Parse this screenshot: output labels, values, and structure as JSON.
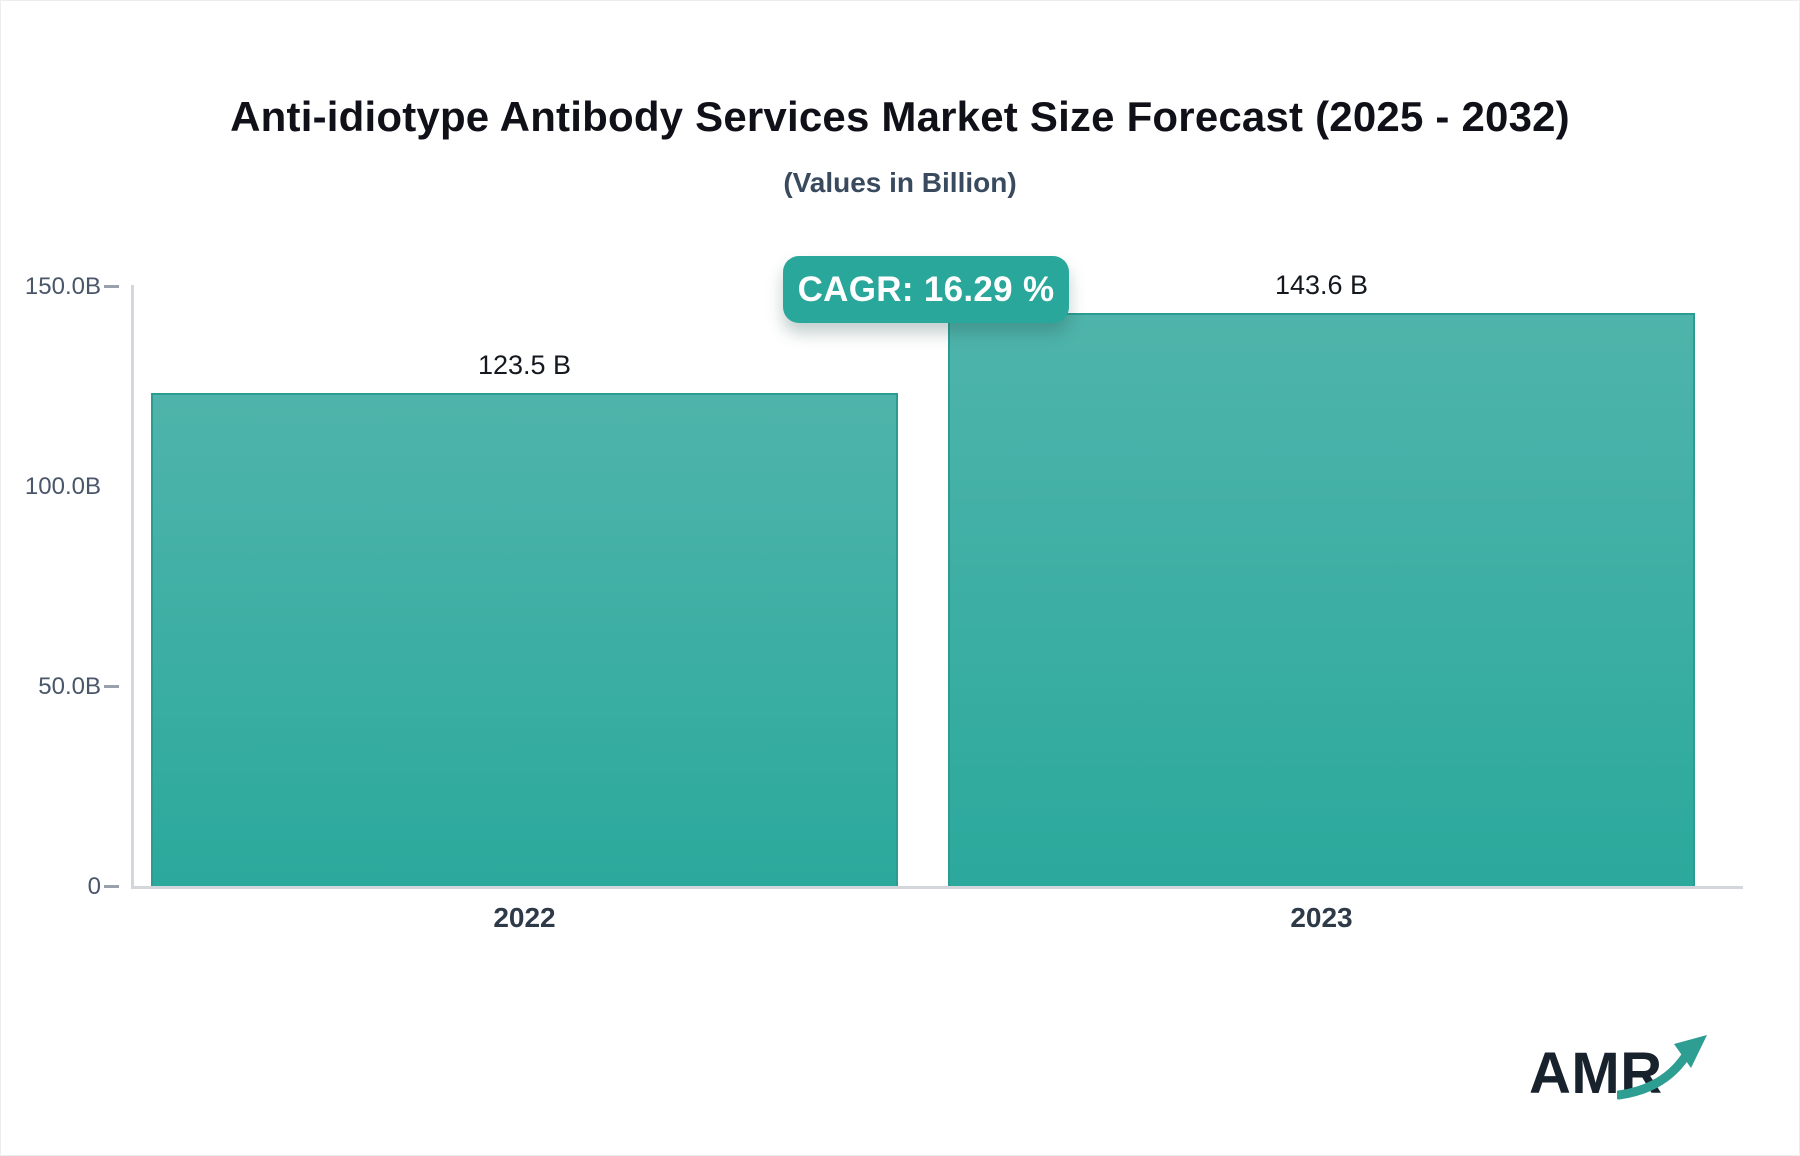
{
  "header": {
    "title": "Anti-idiotype Antibody Services Market Size Forecast (2025 - 2032)",
    "subtitle": "(Values in Billion)"
  },
  "cagr_badge": {
    "label": "CAGR: 16.29 %"
  },
  "chart_data": {
    "type": "bar",
    "title": "Anti-idiotype Antibody Services Market Size Forecast (2025 - 2032)",
    "subtitle": "(Values in Billion)",
    "unit": "Billion",
    "categories": [
      "2022",
      "2023"
    ],
    "values": [
      123.5,
      143.6
    ],
    "value_labels": [
      "123.5 B",
      "143.6 B"
    ],
    "cagr_percent": 16.29,
    "xlabel": "",
    "ylabel": "",
    "ylim": [
      0,
      150
    ],
    "yticks": [
      {
        "value": 0,
        "label": "0",
        "tick": true
      },
      {
        "value": 50,
        "label": "50.0B",
        "tick": true
      },
      {
        "value": 100,
        "label": "100.0B",
        "tick": false
      },
      {
        "value": 150,
        "label": "150.0B",
        "tick": true
      }
    ],
    "grid": false,
    "legend": "none",
    "colors": {
      "bar_gradient_top": "#4fb4ab",
      "bar_gradient_bottom": "#2ba99c",
      "bar_border": "#2b9c92",
      "accent_teal": "#2aa79b",
      "axis_line": "#d3d7dc",
      "tick": "#99a1ac",
      "y_label": "#4a5669",
      "x_label": "#2f3a49",
      "value_label": "#14181f",
      "title": "#101018",
      "subtitle": "#3a4a5e",
      "logo_text": "#18222d",
      "logo_arrow": "#2e9d92"
    }
  },
  "footer": {
    "logo_text": "AMR"
  }
}
